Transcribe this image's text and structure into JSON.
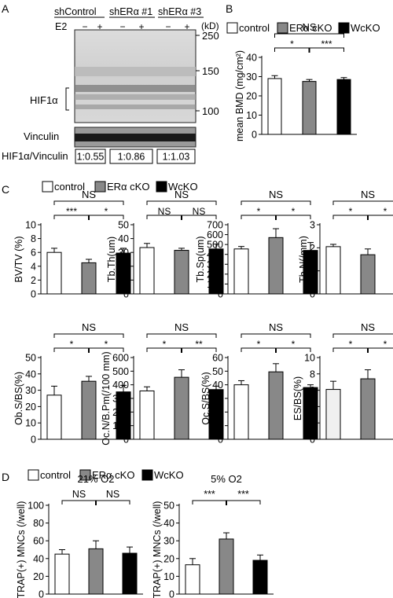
{
  "panel_labels": {
    "a": "A",
    "b": "B",
    "c": "C",
    "d": "D"
  },
  "blot": {
    "groups": [
      "shControl",
      "shERα #1",
      "shERα #3"
    ],
    "e2_label": "E2",
    "e2_signs": [
      "−",
      "+",
      "−",
      "+",
      "−",
      "+"
    ],
    "kd_label": "(kD)",
    "markers": [
      "250",
      "150",
      "100"
    ],
    "hif_label": "HIF1α",
    "vinculin_label": "Vinculin",
    "ratio_label": "HIF1α/Vinculin",
    "ratios": [
      "1:0.55",
      "1:0.86",
      "1:1.03"
    ]
  },
  "legend": {
    "control": "control",
    "cko": "ERα cKO",
    "wcko": "WcKO"
  },
  "colors": {
    "control": "#ffffff",
    "cko": "#888888",
    "wcko": "#000000",
    "control_light": "#e6e6e6"
  },
  "chart_data": [
    {
      "id": "b",
      "type": "bar",
      "ylabel": "mean BMD (mg/cm²)",
      "ylim": [
        0,
        40
      ],
      "yticks": [
        "0",
        "10",
        "20",
        "30",
        "40"
      ],
      "categories": [
        "control",
        "ERα cKO",
        "WcKO"
      ],
      "values": [
        29,
        27.5,
        28.5
      ],
      "errors": [
        1.5,
        1.0,
        1.0
      ],
      "annotations": {
        "top": "NS",
        "left": "*",
        "right": "***"
      }
    },
    {
      "id": "bvtv",
      "type": "bar",
      "ylabel": "BV/TV (%)",
      "ylim": [
        0,
        10
      ],
      "yticks": [
        "0",
        "2",
        "4",
        "6",
        "8",
        "10"
      ],
      "categories": [
        "control",
        "ERα cKO",
        "WcKO"
      ],
      "values": [
        6.0,
        4.5,
        5.9
      ],
      "errors": [
        0.6,
        0.5,
        0.7
      ],
      "annotations": {
        "top": "NS",
        "left": "***",
        "right": "*"
      }
    },
    {
      "id": "tbth",
      "type": "bar",
      "ylabel": "Tb.Th(um)",
      "ylim": [
        0,
        50
      ],
      "yticks": [
        "0",
        "10",
        "20",
        "30",
        "40",
        "50"
      ],
      "categories": [
        "control",
        "ERα cKO",
        "WcKO"
      ],
      "values": [
        33.5,
        31.5,
        32.5
      ],
      "errors": [
        3.0,
        1.5,
        3.5
      ],
      "annotations": {
        "top": "NS",
        "left": "NS",
        "right": "NS"
      }
    },
    {
      "id": "tbsp",
      "type": "bar",
      "ylabel": "Tb.Sp(um)",
      "ylim": [
        0,
        700
      ],
      "yticks": [
        "0",
        "100",
        "200",
        "300",
        "400",
        "500",
        "600",
        "700"
      ],
      "categories": [
        "control",
        "ERα cKO",
        "WcKO"
      ],
      "values": [
        455,
        570,
        440
      ],
      "errors": [
        25,
        90,
        80
      ],
      "annotations": {
        "top": "NS",
        "left": "*",
        "right": "*"
      }
    },
    {
      "id": "tbn",
      "type": "bar",
      "ylabel": "Tb.N(/mm)",
      "ylim": [
        0,
        3
      ],
      "yticks": [
        "0",
        "1",
        "2",
        "3"
      ],
      "categories": [
        "control",
        "ERα cKO",
        "WcKO"
      ],
      "values": [
        2.05,
        1.7,
        2.35
      ],
      "errors": [
        0.1,
        0.25,
        0.3
      ],
      "annotations": {
        "top": "NS",
        "left": "*",
        "right": "*"
      }
    },
    {
      "id": "obs",
      "type": "bar",
      "ylabel": "Ob.S/BS(%)",
      "ylim": [
        0,
        50
      ],
      "yticks": [
        "0",
        "10",
        "20",
        "30",
        "40",
        "50"
      ],
      "categories": [
        "control",
        "ERα cKO",
        "WcKO"
      ],
      "values": [
        27,
        35.5,
        29
      ],
      "errors": [
        5.5,
        3.0,
        4.0
      ],
      "annotations": {
        "top": "NS",
        "left": "*",
        "right": "*"
      }
    },
    {
      "id": "ocn",
      "type": "bar",
      "ylabel": "Oc.N/B.Pm(/100 mm)",
      "ylim": [
        0,
        600
      ],
      "yticks": [
        "0",
        "100",
        "200",
        "300",
        "400",
        "500",
        "600"
      ],
      "categories": [
        "control",
        "ERα cKO",
        "WcKO"
      ],
      "values": [
        355,
        455,
        365
      ],
      "errors": [
        30,
        55,
        25
      ],
      "annotations": {
        "top": "NS",
        "left": "*",
        "right": "**"
      }
    },
    {
      "id": "ocs",
      "type": "bar",
      "ylabel": "Oc.S/BS(%)",
      "ylim": [
        0,
        60
      ],
      "yticks": [
        "0",
        "10",
        "20",
        "30",
        "40",
        "50",
        "60"
      ],
      "categories": [
        "control",
        "ERα cKO",
        "WcKO"
      ],
      "values": [
        40,
        49.5,
        38
      ],
      "errors": [
        3.0,
        6.0,
        2.0
      ],
      "annotations": {
        "top": "NS",
        "left": "*",
        "right": "*"
      }
    },
    {
      "id": "esbs",
      "type": "bar",
      "ylabel": "ES/BS(%)",
      "ylim": [
        0,
        10
      ],
      "yticks": [
        "0",
        "2",
        "4",
        "6",
        "8",
        "10"
      ],
      "categories": [
        "control",
        "ERα cKO",
        "WcKO"
      ],
      "values": [
        6.1,
        7.4,
        5.7
      ],
      "errors": [
        1.0,
        1.1,
        1.1
      ],
      "annotations": {
        "top": "NS",
        "left": "*",
        "right": "*"
      }
    },
    {
      "id": "d21",
      "type": "bar",
      "title": "21% O2",
      "ylabel": "TRAP(+) MNCs (/well)",
      "ylim": [
        0,
        100
      ],
      "yticks": [
        "0",
        "20",
        "40",
        "60",
        "80",
        "100"
      ],
      "categories": [
        "control",
        "ERα cKO",
        "WcKO"
      ],
      "values": [
        45,
        51,
        46
      ],
      "errors": [
        5,
        9,
        7
      ],
      "annotations": {
        "left": "NS",
        "right": "NS"
      }
    },
    {
      "id": "d5",
      "type": "bar",
      "title": "5% O2",
      "ylabel": "TRAP(+) MNCs (/well)",
      "ylim": [
        0,
        50
      ],
      "yticks": [
        "0",
        "10",
        "20",
        "30",
        "40",
        "50"
      ],
      "categories": [
        "control",
        "ERα cKO",
        "WcKO"
      ],
      "values": [
        16.5,
        31,
        19
      ],
      "errors": [
        3.5,
        3.5,
        3.0
      ],
      "annotations": {
        "left": "***",
        "right": "***"
      }
    }
  ]
}
